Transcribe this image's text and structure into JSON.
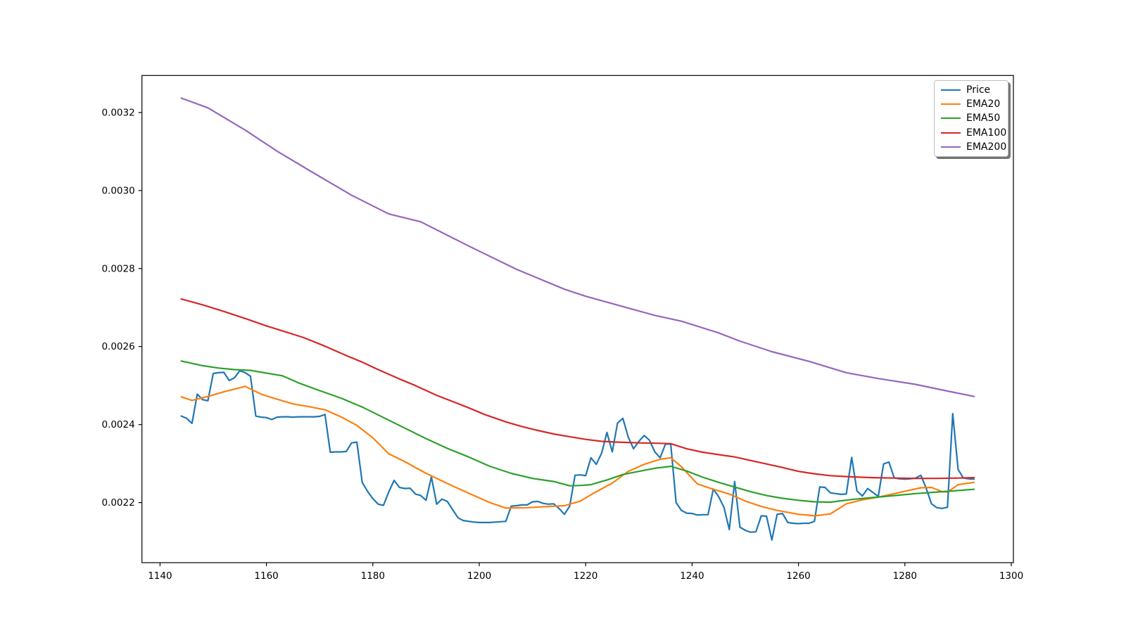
{
  "figure": {
    "background": "#ffffff",
    "spine_color": "#000000",
    "tick_label_color": "#000000"
  },
  "chart_data": {
    "type": "line",
    "title": "",
    "xlabel": "",
    "ylabel": "",
    "grid": false,
    "legend_position": "upper right",
    "legend_shadow": true,
    "xlim": [
      1136.6,
      1300.4
    ],
    "ylim": [
      0.002046,
      0.003295
    ],
    "xticks": [
      {
        "value": 1140,
        "label": "1140"
      },
      {
        "value": 1160,
        "label": "1160"
      },
      {
        "value": 1180,
        "label": "1180"
      },
      {
        "value": 1200,
        "label": "1200"
      },
      {
        "value": 1220,
        "label": "1220"
      },
      {
        "value": 1240,
        "label": "1240"
      },
      {
        "value": 1260,
        "label": "1260"
      },
      {
        "value": 1280,
        "label": "1280"
      },
      {
        "value": 1300,
        "label": "1300"
      }
    ],
    "yticks": [
      {
        "value": 0.0022,
        "label": "0.0022"
      },
      {
        "value": 0.0024,
        "label": "0.0024"
      },
      {
        "value": 0.0026,
        "label": "0.0026"
      },
      {
        "value": 0.0028,
        "label": "0.0028"
      },
      {
        "value": 0.003,
        "label": "0.0030"
      },
      {
        "value": 0.0032,
        "label": "0.0032"
      }
    ],
    "series": [
      {
        "name": "Price",
        "color": "#1f77b4",
        "x_start": 1144,
        "x_step": 1,
        "y": [
          0.002422,
          0.002416,
          0.002403,
          0.002478,
          0.002464,
          0.002461,
          0.002531,
          0.002533,
          0.002534,
          0.002513,
          0.00252,
          0.002538,
          0.002533,
          0.002524,
          0.002422,
          0.002419,
          0.002418,
          0.002413,
          0.002419,
          0.00242,
          0.00242,
          0.002419,
          0.00242,
          0.00242,
          0.00242,
          0.00242,
          0.002421,
          0.002426,
          0.002329,
          0.00233,
          0.00233,
          0.002331,
          0.002353,
          0.002355,
          0.002252,
          0.002229,
          0.00221,
          0.002196,
          0.002193,
          0.002228,
          0.002257,
          0.002239,
          0.002236,
          0.002237,
          0.002222,
          0.002218,
          0.002206,
          0.002266,
          0.002196,
          0.002209,
          0.002203,
          0.002182,
          0.002161,
          0.002154,
          0.002152,
          0.00215,
          0.002149,
          0.002149,
          0.002149,
          0.00215,
          0.002151,
          0.002152,
          0.002191,
          0.002192,
          0.002194,
          0.002194,
          0.002202,
          0.002203,
          0.002198,
          0.002196,
          0.002197,
          0.002185,
          0.00217,
          0.002191,
          0.00227,
          0.002271,
          0.002269,
          0.002315,
          0.002298,
          0.002327,
          0.00238,
          0.00233,
          0.002404,
          0.002416,
          0.002368,
          0.002338,
          0.002357,
          0.002372,
          0.00236,
          0.00233,
          0.002315,
          0.00235,
          0.00235,
          0.0022,
          0.00218,
          0.002173,
          0.002172,
          0.002168,
          0.002169,
          0.002169,
          0.002235,
          0.002215,
          0.002188,
          0.002131,
          0.002254,
          0.002137,
          0.002129,
          0.002124,
          0.002125,
          0.002166,
          0.002165,
          0.002104,
          0.00217,
          0.002172,
          0.002149,
          0.002147,
          0.002146,
          0.002147,
          0.002147,
          0.002152,
          0.00224,
          0.002239,
          0.002225,
          0.002223,
          0.002221,
          0.002222,
          0.002316,
          0.00223,
          0.002217,
          0.002236,
          0.002226,
          0.002216,
          0.002299,
          0.002304,
          0.002263,
          0.002261,
          0.00226,
          0.002261,
          0.002263,
          0.00227,
          0.002237,
          0.002197,
          0.002187,
          0.002185,
          0.002188,
          0.002428,
          0.002285,
          0.002263,
          0.002261,
          0.00226
        ]
      },
      {
        "name": "EMA20",
        "color": "#ff7f0e",
        "x": [
          1144,
          1146,
          1149,
          1152,
          1156,
          1159,
          1162,
          1165,
          1168,
          1171,
          1174,
          1177,
          1180,
          1183,
          1186,
          1190,
          1194,
          1198,
          1202,
          1205,
          1209,
          1213,
          1216,
          1219,
          1222,
          1225,
          1228,
          1231,
          1234,
          1236,
          1238,
          1241,
          1244,
          1247,
          1250,
          1253,
          1256,
          1260,
          1263,
          1266,
          1269,
          1272,
          1275,
          1279,
          1283,
          1285,
          1287,
          1288,
          1290,
          1293
        ],
        "y": [
          0.002471,
          0.002462,
          0.002472,
          0.002484,
          0.002498,
          0.002478,
          0.002465,
          0.002453,
          0.002446,
          0.002438,
          0.00242,
          0.002398,
          0.002366,
          0.002325,
          0.002305,
          0.002275,
          0.002249,
          0.002224,
          0.0022,
          0.002186,
          0.002187,
          0.00219,
          0.002192,
          0.002204,
          0.002228,
          0.00225,
          0.00228,
          0.002298,
          0.002311,
          0.002315,
          0.002292,
          0.002248,
          0.002234,
          0.002222,
          0.002204,
          0.00219,
          0.00218,
          0.00217,
          0.002166,
          0.002171,
          0.002197,
          0.002207,
          0.002214,
          0.002226,
          0.002238,
          0.002239,
          0.002228,
          0.002227,
          0.002246,
          0.002252
        ]
      },
      {
        "name": "EMA50",
        "color": "#2ca02c",
        "x": [
          1144,
          1148,
          1151,
          1154,
          1157,
          1160,
          1163,
          1166,
          1170,
          1174,
          1178,
          1182,
          1186,
          1190,
          1194,
          1198,
          1202,
          1206,
          1210,
          1214,
          1217,
          1219,
          1221,
          1224,
          1227,
          1230,
          1233,
          1236,
          1239,
          1242,
          1245,
          1248,
          1251,
          1254,
          1257,
          1260,
          1263,
          1266,
          1270,
          1274,
          1278,
          1282,
          1286,
          1289,
          1293
        ],
        "y": [
          0.002563,
          0.002551,
          0.002545,
          0.002541,
          0.002539,
          0.002532,
          0.002525,
          0.002507,
          0.002487,
          0.002468,
          0.002445,
          0.002418,
          0.002391,
          0.002364,
          0.002339,
          0.002317,
          0.002293,
          0.002275,
          0.002262,
          0.002254,
          0.002243,
          0.002244,
          0.002246,
          0.002258,
          0.002272,
          0.00228,
          0.002288,
          0.002293,
          0.002281,
          0.002265,
          0.002252,
          0.00224,
          0.002228,
          0.002218,
          0.002211,
          0.002206,
          0.002202,
          0.002201,
          0.002208,
          0.002213,
          0.002218,
          0.002223,
          0.002227,
          0.00223,
          0.002234
        ]
      },
      {
        "name": "EMA100",
        "color": "#d62728",
        "x": [
          1144,
          1148,
          1152,
          1156,
          1160,
          1164,
          1167,
          1171,
          1175,
          1178,
          1181,
          1185,
          1188,
          1192,
          1195,
          1198,
          1201,
          1205,
          1208,
          1211,
          1214,
          1217,
          1220,
          1223,
          1226,
          1230,
          1234,
          1236,
          1239,
          1242,
          1245,
          1248,
          1251,
          1254,
          1257,
          1260,
          1263,
          1266,
          1270,
          1274,
          1278,
          1282,
          1286,
          1290,
          1293
        ],
        "y": [
          0.002722,
          0.002707,
          0.00269,
          0.002672,
          0.002653,
          0.002636,
          0.002623,
          0.002601,
          0.002577,
          0.00256,
          0.002541,
          0.002517,
          0.0025,
          0.002475,
          0.002459,
          0.002443,
          0.002426,
          0.002407,
          0.002395,
          0.002385,
          0.002376,
          0.002369,
          0.002362,
          0.002357,
          0.002355,
          0.002353,
          0.002352,
          0.002351,
          0.002338,
          0.002329,
          0.002323,
          0.002317,
          0.002308,
          0.002299,
          0.00229,
          0.00228,
          0.002274,
          0.002269,
          0.002266,
          0.002264,
          0.002263,
          0.002262,
          0.002262,
          0.002263,
          0.002264
        ]
      },
      {
        "name": "EMA200",
        "color": "#9467bd",
        "x": [
          1144,
          1149,
          1156,
          1162,
          1169,
          1176,
          1183,
          1189,
          1198,
          1207,
          1216,
          1220,
          1225,
          1229,
          1233,
          1238,
          1245,
          1249,
          1255,
          1262,
          1269,
          1275,
          1282,
          1288,
          1293
        ],
        "y": [
          0.003237,
          0.003212,
          0.003155,
          0.003101,
          0.003044,
          0.002988,
          0.00294,
          0.00292,
          0.002858,
          0.002798,
          0.002747,
          0.002729,
          0.00271,
          0.002695,
          0.00268,
          0.002665,
          0.002635,
          0.002614,
          0.002587,
          0.002562,
          0.002533,
          0.002518,
          0.002503,
          0.002486,
          0.002472
        ]
      }
    ]
  }
}
